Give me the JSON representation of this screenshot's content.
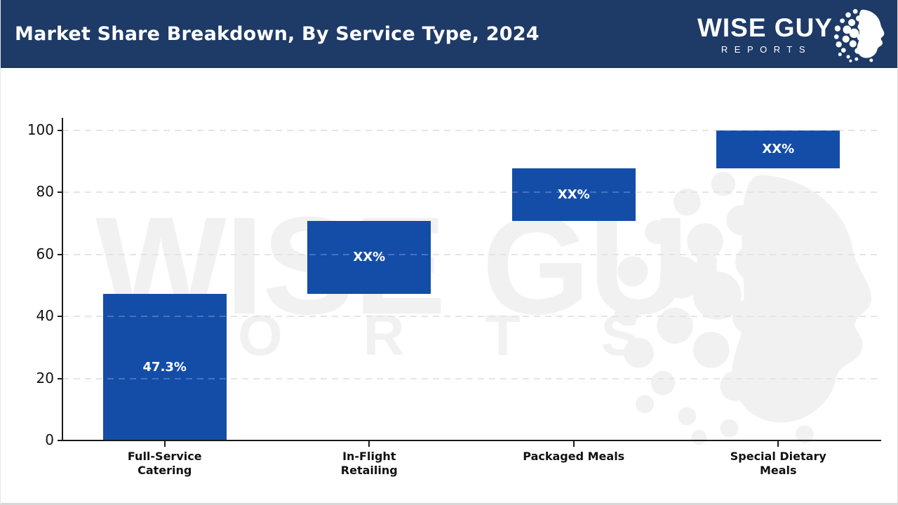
{
  "header": {
    "title": "Market Share Breakdown, By Service Type, 2024",
    "logo": {
      "line1": "WISE GUY",
      "line2": "REPORTS"
    }
  },
  "watermark": {
    "line1": "WISE GU·Y",
    "line2": "P O R T S"
  },
  "chart_data": {
    "type": "bar",
    "subtype": "waterfall",
    "title": "Market Share Breakdown, By Service Type, 2024",
    "categories": [
      "Full-Service Catering",
      "In-Flight Retailing",
      "Packaged Meals",
      "Special Dietary Meals"
    ],
    "category_lines": [
      [
        "Full-Service",
        "Catering"
      ],
      [
        "In-Flight",
        "Retailing"
      ],
      [
        "Packaged Meals"
      ],
      [
        "Special Dietary",
        "Meals"
      ]
    ],
    "segments": [
      {
        "category": "Full-Service Catering",
        "start": 0,
        "end": 47.3,
        "label": "47.3%"
      },
      {
        "category": "In-Flight Retailing",
        "start": 47.3,
        "end": 70.8,
        "label": "XX%"
      },
      {
        "category": "Packaged Meals",
        "start": 70.8,
        "end": 87.8,
        "label": "XX%"
      },
      {
        "category": "Special Dietary Meals",
        "start": 87.8,
        "end": 100,
        "label": "XX%"
      }
    ],
    "estimated_values": [
      47.3,
      23.5,
      17.0,
      12.2
    ],
    "xlabel": "",
    "ylabel": "",
    "ylim": [
      0,
      100
    ],
    "y_ticks": [
      0,
      20,
      40,
      60,
      80,
      100
    ],
    "grid": "horizontal dashed",
    "legend": "none",
    "colors": {
      "bar": "#0a46a4",
      "bar_label": "#ffffff",
      "header_bg": "#1e3a66",
      "grid_line": "#dedede",
      "axis": "#1a1a1a",
      "watermark": "#f1f1f1"
    }
  }
}
